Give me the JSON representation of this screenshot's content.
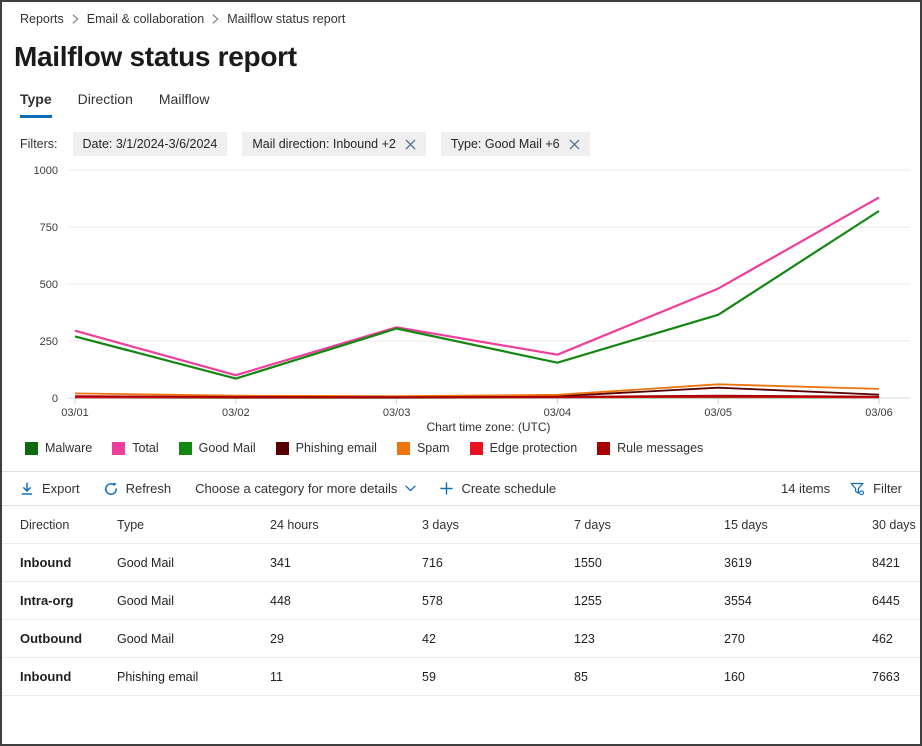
{
  "breadcrumb": {
    "items": [
      "Reports",
      "Email & collaboration",
      "Mailflow status report"
    ]
  },
  "page": {
    "title": "Mailflow status report"
  },
  "tabs": [
    {
      "label": "Type",
      "selected": true
    },
    {
      "label": "Direction",
      "selected": false
    },
    {
      "label": "Mailflow",
      "selected": false
    }
  ],
  "filters": {
    "label": "Filters:",
    "chips": [
      {
        "label": "Date: 3/1/2024-3/6/2024",
        "dismissible": false
      },
      {
        "label": "Mail direction: Inbound +2",
        "dismissible": true
      },
      {
        "label": "Type: Good Mail +6",
        "dismissible": true
      }
    ]
  },
  "chart_data": {
    "type": "line",
    "x": [
      "03/01",
      "03/02",
      "03/03",
      "03/04",
      "03/05",
      "03/06"
    ],
    "series": [
      {
        "name": "Malware",
        "color": "#0b6a0b",
        "values": [
          2,
          1,
          1,
          2,
          3,
          2
        ]
      },
      {
        "name": "Total",
        "color": "#ee3d9b",
        "values": [
          295,
          100,
          310,
          190,
          480,
          880
        ]
      },
      {
        "name": "Good Mail",
        "color": "#148712",
        "values": [
          270,
          85,
          305,
          155,
          365,
          820
        ]
      },
      {
        "name": "Phishing email",
        "color": "#570000",
        "values": [
          6,
          4,
          3,
          8,
          45,
          15
        ]
      },
      {
        "name": "Spam",
        "color": "#ee7410",
        "values": [
          20,
          10,
          8,
          14,
          60,
          40
        ]
      },
      {
        "name": "Edge protection",
        "color": "#e81123",
        "values": [
          3,
          2,
          2,
          3,
          5,
          3
        ]
      },
      {
        "name": "Rule messages",
        "color": "#a80000",
        "values": [
          8,
          5,
          4,
          5,
          10,
          6
        ]
      }
    ],
    "ylim": [
      0,
      1000
    ],
    "yticks": [
      0,
      250,
      500,
      750,
      1000
    ],
    "grid": true,
    "legend_position": "bottom",
    "footnote": "Chart time zone: (UTC)"
  },
  "toolbar": {
    "export_label": "Export",
    "refresh_label": "Refresh",
    "category_dropdown_label": "Choose a category for more details",
    "create_schedule_label": "Create schedule",
    "items_count": "14 items",
    "filter_label": "Filter"
  },
  "table": {
    "headers": [
      "Direction",
      "Type",
      "24 hours",
      "3 days",
      "7 days",
      "15 days",
      "30 days"
    ],
    "rows": [
      {
        "direction": "Inbound",
        "type": "Good Mail",
        "values": [
          "341",
          "716",
          "1550",
          "3619",
          "8421"
        ]
      },
      {
        "direction": "Intra-org",
        "type": "Good Mail",
        "values": [
          "448",
          "578",
          "1255",
          "3554",
          "6445"
        ]
      },
      {
        "direction": "Outbound",
        "type": "Good Mail",
        "values": [
          "29",
          "42",
          "123",
          "270",
          "462"
        ]
      },
      {
        "direction": "Inbound",
        "type": "Phishing email",
        "values": [
          "11",
          "59",
          "85",
          "160",
          "7663"
        ]
      }
    ]
  },
  "colors": {
    "accent_blue": "#0f6cbd",
    "chip_dismiss": "#4a6e96",
    "grid_line": "#e9e8e7",
    "axis_line": "#dcdad9",
    "tick_mark": "#c8d4de",
    "axis_text": "#3b3a39"
  }
}
